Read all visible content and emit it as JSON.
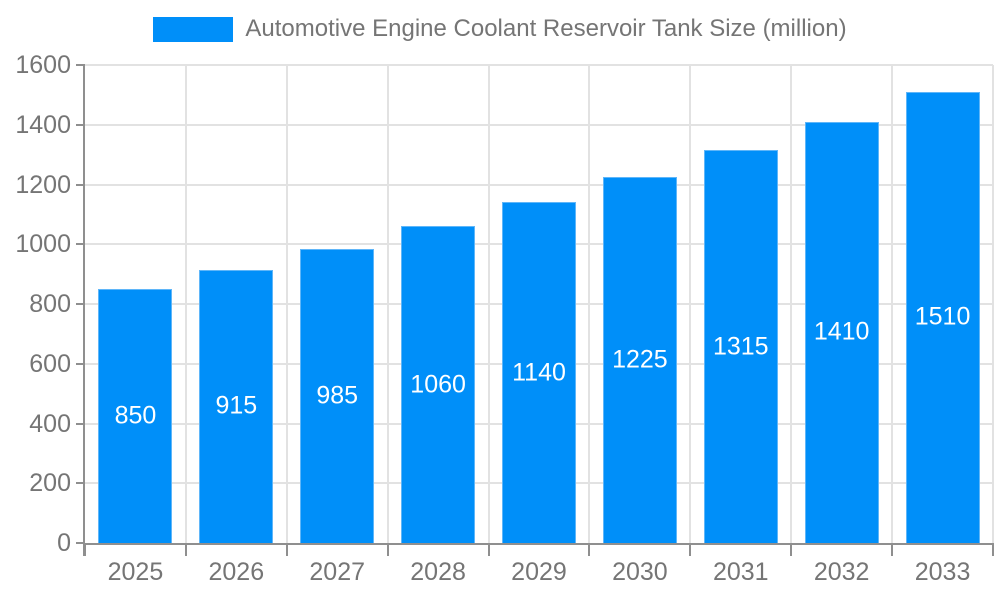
{
  "legend": {
    "label": "Automotive Engine Coolant Reservoir Tank Size (million)"
  },
  "colors": {
    "bar": "#008FF9",
    "bar_edge": "#5fb6f9",
    "bar_label": "#ffffff",
    "axis_text": "#757575",
    "legend_text": "#757575",
    "grid": "#e2e2e2",
    "axis_line": "#8f8f8f",
    "background": "#ffffff"
  },
  "chart_data": {
    "type": "bar",
    "title": "Automotive Engine Coolant Reservoir Tank Size (million)",
    "categories": [
      "2025",
      "2026",
      "2027",
      "2028",
      "2029",
      "2030",
      "2031",
      "2032",
      "2033"
    ],
    "values": [
      850,
      915,
      985,
      1060,
      1140,
      1225,
      1315,
      1410,
      1510
    ],
    "series": [
      {
        "name": "Automotive Engine Coolant Reservoir Tank Size (million)",
        "values": [
          850,
          915,
          985,
          1060,
          1140,
          1225,
          1315,
          1410,
          1510
        ]
      }
    ],
    "xlabel": "",
    "ylabel": "",
    "ylim": [
      0,
      1600
    ],
    "yticks": [
      0,
      200,
      400,
      600,
      800,
      1000,
      1200,
      1400,
      1600
    ],
    "grid": true,
    "legend_position": "top-center",
    "data_labels": "inside-middle-white"
  }
}
